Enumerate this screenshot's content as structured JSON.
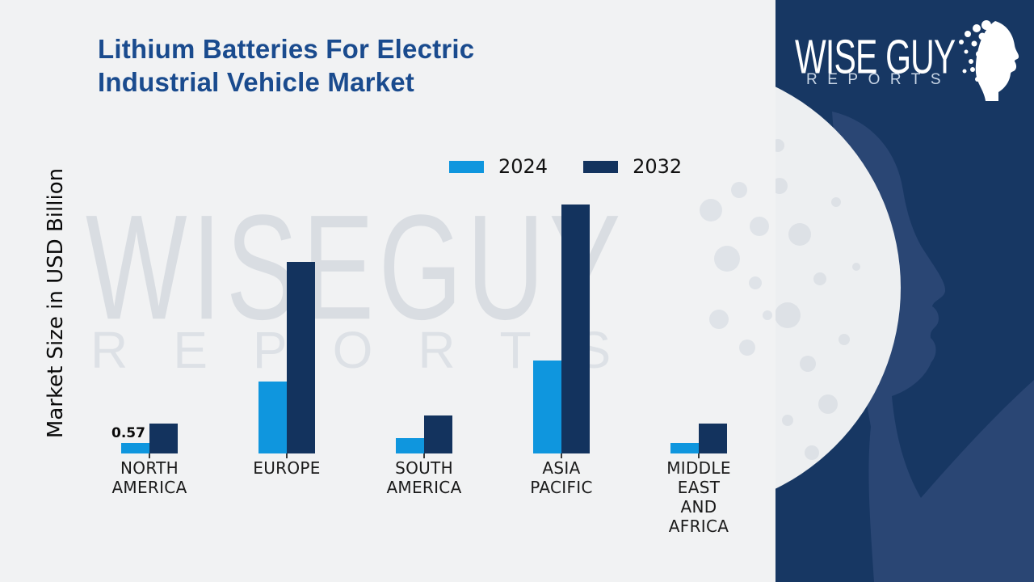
{
  "page": {
    "background": "#f1f2f3"
  },
  "title": {
    "line1": "Lithium Batteries For Electric",
    "line2": "Industrial Vehicle Market",
    "color": "#1a4b8e"
  },
  "watermark": {
    "line1": "WISEGUY",
    "line2": "REPORTS"
  },
  "logo": {
    "name": "WISE GUY REPORTS",
    "line1": "WISE GUY",
    "line2": "REPORTS"
  },
  "colors": {
    "series_2024": "#0f96de",
    "series_2032": "#13335e",
    "panel_navy": "#173763",
    "face_navy": "#2a4674",
    "circle_white": "#edeff1",
    "title_blue": "#1a4b8e"
  },
  "legend": {
    "items": [
      {
        "label": "2024",
        "color": "#0f96de"
      },
      {
        "label": "2032",
        "color": "#13335e"
      }
    ]
  },
  "chart_data": {
    "type": "bar",
    "title": "Lithium Batteries For Electric Industrial Vehicle Market",
    "ylabel": "Market Size in USD Billion",
    "unit": "USD Billion",
    "grid": false,
    "legend_position": "top-center",
    "categories": [
      "NORTH AMERICA",
      "EUROPE",
      "SOUTH AMERICA",
      "ASIA PACIFIC",
      "MIDDLE EAST AND AFRICA"
    ],
    "category_lines": [
      [
        "NORTH",
        "AMERICA"
      ],
      [
        "EUROPE"
      ],
      [
        "SOUTH",
        "AMERICA"
      ],
      [
        "ASIA",
        "PACIFIC"
      ],
      [
        "MIDDLE",
        "EAST",
        "AND",
        "AFRICA"
      ]
    ],
    "series": [
      {
        "name": "2024",
        "color": "#0f96de",
        "values": [
          0.57,
          3.9,
          0.83,
          5.05,
          0.55
        ]
      },
      {
        "name": "2032",
        "color": "#13335e",
        "values": [
          1.64,
          10.4,
          2.06,
          13.5,
          1.62
        ]
      }
    ],
    "annotations": [
      {
        "category": "NORTH AMERICA",
        "series": "2024",
        "text": "0.57"
      }
    ]
  }
}
